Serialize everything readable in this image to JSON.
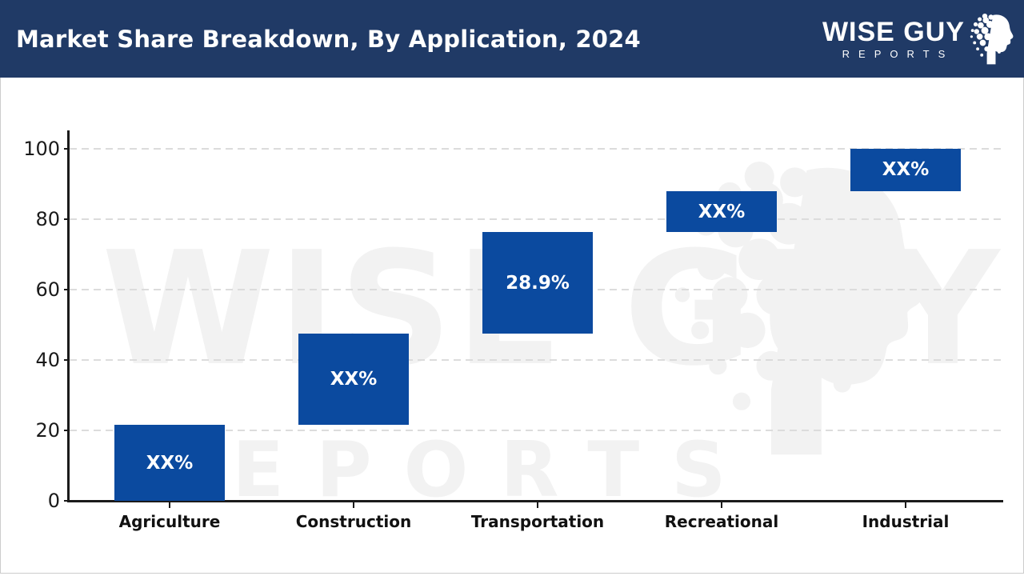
{
  "header": {
    "title": "Market Share Breakdown, By Application, 2024",
    "logo": {
      "name": "WISE GUY",
      "sub": "REPORTS"
    }
  },
  "icons": {
    "logo_face": "wiseguy-face-profile-dots"
  },
  "watermark": {
    "line1": "WISE GUY",
    "line2": "REPORTS"
  },
  "colors": {
    "header_bg": "#203a66",
    "header_text": "#ffffff",
    "bar": "#0b4a9f",
    "bar_label": "#ffffff",
    "axis": "#1a1a1a",
    "grid": "#dcdcdc",
    "watermark": "#f2f2f2",
    "page_border": "#cccccc"
  },
  "chart_data": {
    "type": "bar",
    "subtype": "floating_waterfall",
    "title": "Market Share Breakdown, By Application, 2024",
    "categories": [
      "Agriculture",
      "Construction",
      "Transportation",
      "Recreational",
      "Industrial"
    ],
    "segments": [
      {
        "category": "Agriculture",
        "start": 0,
        "end": 21.5,
        "value": 21.5,
        "value_label": "XX%"
      },
      {
        "category": "Construction",
        "start": 21.5,
        "end": 47.4,
        "value": 25.9,
        "value_label": "XX%"
      },
      {
        "category": "Transportation",
        "start": 47.4,
        "end": 76.3,
        "value": 28.9,
        "value_label": "28.9%"
      },
      {
        "category": "Recreational",
        "start": 76.3,
        "end": 88.0,
        "value": 11.7,
        "value_label": "XX%"
      },
      {
        "category": "Industrial",
        "start": 88.0,
        "end": 100,
        "value": 12.0,
        "value_label": "XX%"
      }
    ],
    "xlabel": "",
    "ylabel": "",
    "ylim": [
      0,
      104
    ],
    "yticks": [
      0,
      20,
      40,
      60,
      80,
      100
    ],
    "grid": {
      "axis": "y",
      "style": "dashed",
      "on": true
    },
    "legend": null
  }
}
